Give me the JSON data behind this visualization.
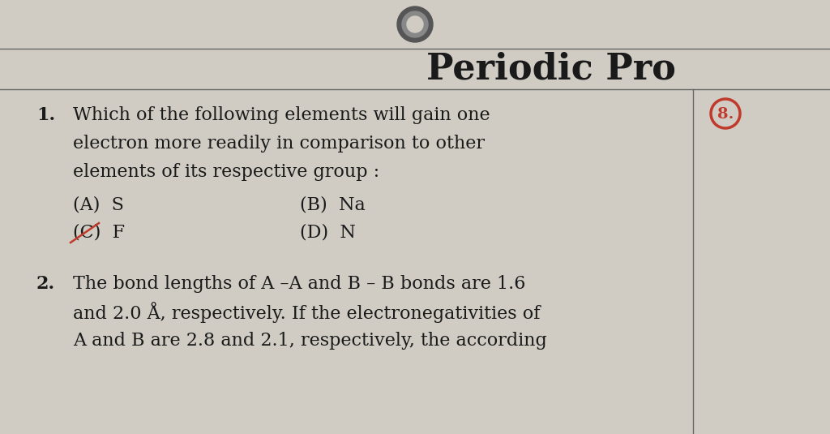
{
  "bg_color": "#d0ccc4",
  "paper_color": "#cdc9c1",
  "title": "Periodic Pro",
  "title_fontsize": 32,
  "q1_number": "1.",
  "q1_text_line1": "Which of the following elements will gain one",
  "q1_text_line2": "electron more readily in comparison to other",
  "q1_text_line3": "elements of its respective group :",
  "q1_fontsize": 16,
  "opt_A_text": "(A)  S",
  "opt_B_text": "(B)  Na",
  "opt_C_text": "(C)  F",
  "opt_D_text": "(D)  N",
  "opt_fontsize": 16,
  "badge_text": "8.",
  "badge_color": "#c0392b",
  "q2_number": "2.",
  "q2_text_line1": "The bond lengths of A –A and B – B bonds are 1.6",
  "q2_text_line2": "and 2.0 Å, respectively. If the electronegativities of",
  "q2_text_line3": "A and B are 2.8 and 2.1, respectively, the according",
  "q2_fontsize": 16,
  "text_color": "#1a1a1a",
  "line_color": "#666666",
  "number_fontsize": 16
}
